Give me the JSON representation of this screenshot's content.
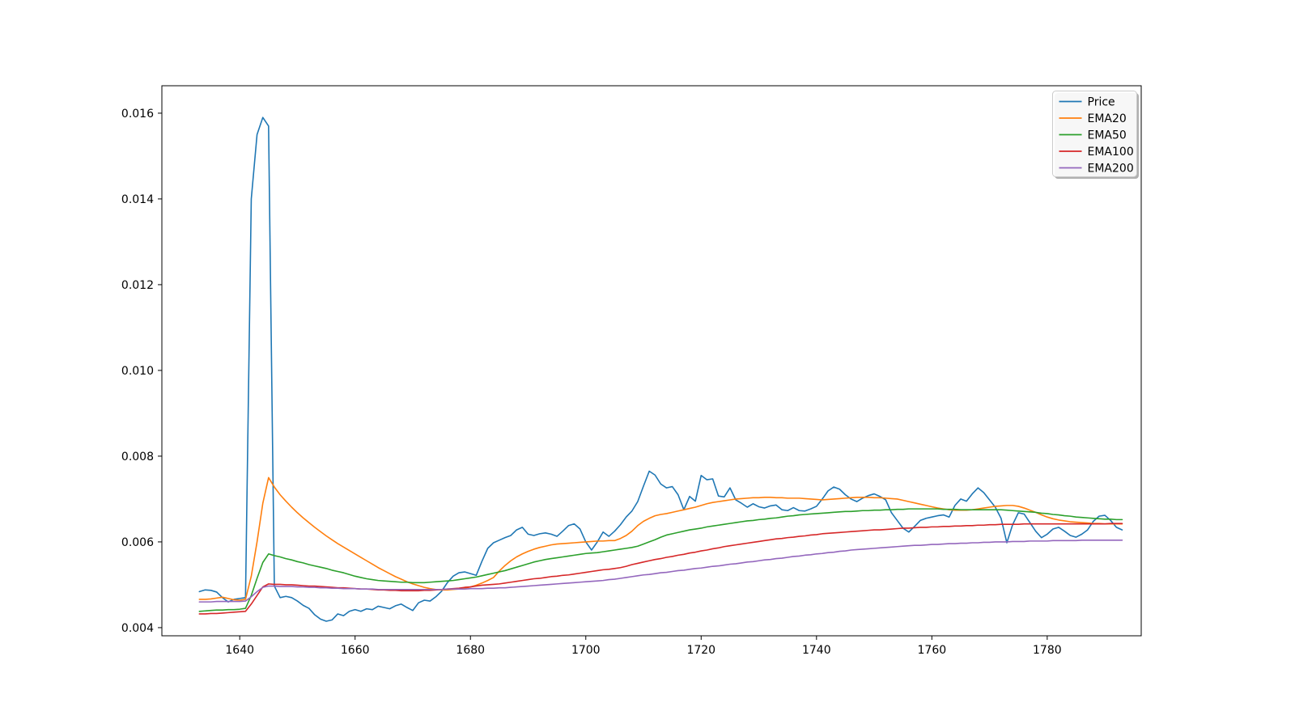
{
  "figure": {
    "background": "#ffffff",
    "axis_color": "#000000"
  },
  "chart_data": {
    "type": "line",
    "title": "",
    "xlabel": "",
    "ylabel": "",
    "grid": false,
    "x_start": 1633,
    "x_step": 1,
    "xlim": [
      1626.5,
      1796.3
    ],
    "ylim": [
      0.00381,
      0.01664
    ],
    "xticks": [
      1640,
      1660,
      1680,
      1700,
      1720,
      1740,
      1760,
      1780
    ],
    "xtick_labels": [
      "1640",
      "1660",
      "1680",
      "1700",
      "1720",
      "1740",
      "1760",
      "1780"
    ],
    "yticks": [
      0.004,
      0.006,
      0.008,
      0.01,
      0.012,
      0.014,
      0.016
    ],
    "ytick_labels": [
      "0.004",
      "0.006",
      "0.008",
      "0.010",
      "0.012",
      "0.014",
      "0.016"
    ],
    "legend": {
      "location": "upper right",
      "entries": [
        "Price",
        "EMA20",
        "EMA50",
        "EMA100",
        "EMA200"
      ]
    },
    "series": [
      {
        "name": "Price",
        "color": "#1f77b4",
        "values": [
          0.00484,
          0.00488,
          0.00487,
          0.00483,
          0.0047,
          0.0046,
          0.00466,
          0.00468,
          0.0047,
          0.014,
          0.0155,
          0.0159,
          0.0157,
          0.00497,
          0.0047,
          0.00473,
          0.0047,
          0.00462,
          0.00452,
          0.00445,
          0.0043,
          0.0042,
          0.00415,
          0.00418,
          0.00432,
          0.00428,
          0.00438,
          0.00442,
          0.00438,
          0.00444,
          0.00442,
          0.0045,
          0.00447,
          0.00444,
          0.00451,
          0.00455,
          0.00447,
          0.0044,
          0.00458,
          0.00464,
          0.00462,
          0.00472,
          0.00485,
          0.00505,
          0.0052,
          0.00528,
          0.0053,
          0.00526,
          0.00522,
          0.00555,
          0.00585,
          0.00598,
          0.00604,
          0.0061,
          0.00615,
          0.00628,
          0.00634,
          0.00618,
          0.00615,
          0.00619,
          0.00621,
          0.00618,
          0.00613,
          0.00625,
          0.00638,
          0.00642,
          0.0063,
          0.006,
          0.00581,
          0.006,
          0.00623,
          0.00613,
          0.00625,
          0.0064,
          0.00658,
          0.00672,
          0.00694,
          0.0073,
          0.00765,
          0.00756,
          0.00735,
          0.00726,
          0.00729,
          0.0071,
          0.00675,
          0.00706,
          0.00695,
          0.00755,
          0.00745,
          0.00747,
          0.00707,
          0.00705,
          0.00726,
          0.00698,
          0.0069,
          0.00681,
          0.00689,
          0.00682,
          0.00679,
          0.00684,
          0.00686,
          0.00675,
          0.00673,
          0.0068,
          0.00673,
          0.00672,
          0.00677,
          0.00683,
          0.007,
          0.00719,
          0.00728,
          0.00723,
          0.0071,
          0.007,
          0.00694,
          0.00702,
          0.00708,
          0.00712,
          0.00706,
          0.00698,
          0.00668,
          0.0065,
          0.00632,
          0.00623,
          0.00636,
          0.0065,
          0.00655,
          0.00658,
          0.00661,
          0.00663,
          0.00658,
          0.00685,
          0.007,
          0.00695,
          0.00712,
          0.00726,
          0.00715,
          0.00698,
          0.00681,
          0.00655,
          0.00598,
          0.0064,
          0.00668,
          0.00665,
          0.00645,
          0.00625,
          0.0061,
          0.00618,
          0.0063,
          0.00634,
          0.00625,
          0.00615,
          0.00611,
          0.00618,
          0.00628,
          0.00648,
          0.0066,
          0.00662,
          0.0065,
          0.00634,
          0.00628
        ]
      },
      {
        "name": "EMA20",
        "color": "#ff7f0e",
        "values": [
          0.00466,
          0.00466,
          0.00467,
          0.00469,
          0.00471,
          0.00468,
          0.00465,
          0.00464,
          0.00466,
          0.0052,
          0.006,
          0.0069,
          0.0075,
          0.00728,
          0.0071,
          0.00695,
          0.00681,
          0.00668,
          0.00656,
          0.00645,
          0.00634,
          0.00624,
          0.00614,
          0.00605,
          0.00596,
          0.00588,
          0.0058,
          0.00572,
          0.00564,
          0.00556,
          0.00548,
          0.0054,
          0.00533,
          0.00526,
          0.00519,
          0.00513,
          0.00507,
          0.00502,
          0.00498,
          0.00494,
          0.00491,
          0.00489,
          0.00488,
          0.00488,
          0.00489,
          0.0049,
          0.00492,
          0.00495,
          0.00499,
          0.00504,
          0.0051,
          0.00517,
          0.00532,
          0.00545,
          0.00556,
          0.00565,
          0.00572,
          0.00578,
          0.00583,
          0.00587,
          0.0059,
          0.00593,
          0.00595,
          0.00596,
          0.00597,
          0.00598,
          0.00599,
          0.006,
          0.00601,
          0.00602,
          0.00602,
          0.00603,
          0.00603,
          0.00608,
          0.00615,
          0.00625,
          0.00638,
          0.00648,
          0.00655,
          0.00661,
          0.00664,
          0.00666,
          0.00669,
          0.00672,
          0.00675,
          0.00678,
          0.00681,
          0.00685,
          0.00689,
          0.00692,
          0.00694,
          0.00696,
          0.00698,
          0.007,
          0.00701,
          0.00702,
          0.00703,
          0.00703,
          0.00704,
          0.00704,
          0.00703,
          0.00703,
          0.00702,
          0.00702,
          0.00702,
          0.00701,
          0.007,
          0.00699,
          0.00698,
          0.00699,
          0.007,
          0.00701,
          0.00702,
          0.00703,
          0.00704,
          0.00704,
          0.00704,
          0.00703,
          0.00703,
          0.00702,
          0.00701,
          0.007,
          0.00697,
          0.00694,
          0.00691,
          0.00688,
          0.00685,
          0.00682,
          0.00679,
          0.00677,
          0.00675,
          0.00674,
          0.00674,
          0.00674,
          0.00675,
          0.00677,
          0.00679,
          0.00681,
          0.00683,
          0.00684,
          0.00685,
          0.00685,
          0.00683,
          0.00679,
          0.00674,
          0.00669,
          0.00663,
          0.00658,
          0.00654,
          0.00651,
          0.00649,
          0.00647,
          0.00646,
          0.00645,
          0.00644,
          0.00643,
          0.00643,
          0.00642,
          0.00642,
          0.00642,
          0.00642
        ]
      },
      {
        "name": "EMA50",
        "color": "#2ca02c",
        "values": [
          0.00438,
          0.00439,
          0.0044,
          0.00441,
          0.00441,
          0.00442,
          0.00442,
          0.00443,
          0.00445,
          0.00475,
          0.00515,
          0.00552,
          0.00572,
          0.00568,
          0.00565,
          0.00561,
          0.00558,
          0.00554,
          0.00551,
          0.00547,
          0.00544,
          0.00541,
          0.00538,
          0.00534,
          0.00531,
          0.00528,
          0.00524,
          0.0052,
          0.00517,
          0.00514,
          0.00512,
          0.0051,
          0.00509,
          0.00508,
          0.00507,
          0.00506,
          0.00506,
          0.00505,
          0.00505,
          0.00505,
          0.00506,
          0.00507,
          0.00508,
          0.00509,
          0.0051,
          0.00512,
          0.00514,
          0.00516,
          0.00518,
          0.00521,
          0.00524,
          0.00527,
          0.0053,
          0.00533,
          0.00537,
          0.00541,
          0.00545,
          0.00549,
          0.00553,
          0.00556,
          0.00559,
          0.00561,
          0.00563,
          0.00565,
          0.00567,
          0.00569,
          0.00571,
          0.00573,
          0.00574,
          0.00575,
          0.00577,
          0.00579,
          0.00581,
          0.00583,
          0.00585,
          0.00587,
          0.0059,
          0.00595,
          0.006,
          0.00605,
          0.00611,
          0.00616,
          0.00619,
          0.00622,
          0.00625,
          0.00628,
          0.0063,
          0.00632,
          0.00635,
          0.00637,
          0.00639,
          0.00641,
          0.00643,
          0.00645,
          0.00647,
          0.00649,
          0.0065,
          0.00652,
          0.00653,
          0.00655,
          0.00656,
          0.00658,
          0.0066,
          0.00661,
          0.00663,
          0.00664,
          0.00665,
          0.00666,
          0.00667,
          0.00668,
          0.00669,
          0.0067,
          0.00671,
          0.00671,
          0.00672,
          0.00673,
          0.00673,
          0.00674,
          0.00674,
          0.00675,
          0.00675,
          0.00676,
          0.00676,
          0.00677,
          0.00677,
          0.00677,
          0.00677,
          0.00677,
          0.00677,
          0.00676,
          0.00676,
          0.00676,
          0.00675,
          0.00675,
          0.00675,
          0.00675,
          0.00675,
          0.00675,
          0.00675,
          0.00675,
          0.00674,
          0.00673,
          0.00672,
          0.00671,
          0.0067,
          0.00669,
          0.00667,
          0.00666,
          0.00664,
          0.00663,
          0.00661,
          0.0066,
          0.00658,
          0.00657,
          0.00656,
          0.00655,
          0.00654,
          0.00653,
          0.00653,
          0.00652,
          0.00652
        ]
      },
      {
        "name": "EMA100",
        "color": "#d62728",
        "values": [
          0.00432,
          0.00432,
          0.00433,
          0.00433,
          0.00434,
          0.00435,
          0.00436,
          0.00437,
          0.00438,
          0.00455,
          0.00475,
          0.00495,
          0.00502,
          0.00501,
          0.00501,
          0.005,
          0.005,
          0.00499,
          0.00498,
          0.00497,
          0.00497,
          0.00496,
          0.00495,
          0.00494,
          0.00493,
          0.00493,
          0.00492,
          0.00491,
          0.0049,
          0.0049,
          0.00489,
          0.00488,
          0.00488,
          0.00487,
          0.00487,
          0.00486,
          0.00486,
          0.00486,
          0.00486,
          0.00487,
          0.00487,
          0.00488,
          0.00489,
          0.0049,
          0.00491,
          0.00492,
          0.00494,
          0.00495,
          0.00497,
          0.00499,
          0.005,
          0.00501,
          0.00502,
          0.00504,
          0.00506,
          0.00508,
          0.0051,
          0.00512,
          0.00514,
          0.00515,
          0.00517,
          0.00519,
          0.0052,
          0.00522,
          0.00523,
          0.00525,
          0.00527,
          0.00529,
          0.00531,
          0.00533,
          0.00535,
          0.00536,
          0.00538,
          0.0054,
          0.00543,
          0.00547,
          0.0055,
          0.00553,
          0.00556,
          0.00559,
          0.00561,
          0.00564,
          0.00566,
          0.00569,
          0.00571,
          0.00574,
          0.00576,
          0.00579,
          0.00581,
          0.00584,
          0.00586,
          0.00589,
          0.00591,
          0.00593,
          0.00595,
          0.00597,
          0.00599,
          0.00601,
          0.00603,
          0.00605,
          0.00607,
          0.00608,
          0.0061,
          0.00611,
          0.00613,
          0.00614,
          0.00616,
          0.00617,
          0.00619,
          0.0062,
          0.00621,
          0.00622,
          0.00623,
          0.00624,
          0.00625,
          0.00626,
          0.00627,
          0.00628,
          0.00628,
          0.00629,
          0.0063,
          0.00631,
          0.00632,
          0.00632,
          0.00633,
          0.00634,
          0.00634,
          0.00635,
          0.00635,
          0.00636,
          0.00636,
          0.00637,
          0.00637,
          0.00638,
          0.00638,
          0.00639,
          0.00639,
          0.0064,
          0.0064,
          0.00641,
          0.00641,
          0.00641,
          0.00641,
          0.00642,
          0.00642,
          0.00642,
          0.00642,
          0.00642,
          0.00642,
          0.00642,
          0.00642,
          0.00642,
          0.00642,
          0.00642,
          0.00642,
          0.00642,
          0.00642,
          0.00642,
          0.00643,
          0.00643,
          0.00643
        ]
      },
      {
        "name": "EMA200",
        "color": "#9467bd",
        "values": [
          0.0046,
          0.0046,
          0.0046,
          0.00461,
          0.00461,
          0.00461,
          0.00461,
          0.00461,
          0.00462,
          0.00472,
          0.00484,
          0.00494,
          0.00497,
          0.00497,
          0.00496,
          0.00496,
          0.00496,
          0.00495,
          0.00495,
          0.00494,
          0.00494,
          0.00493,
          0.00493,
          0.00492,
          0.00492,
          0.00491,
          0.00491,
          0.00491,
          0.0049,
          0.0049,
          0.0049,
          0.00489,
          0.00489,
          0.00489,
          0.00489,
          0.00489,
          0.00489,
          0.00489,
          0.00489,
          0.00489,
          0.00489,
          0.00489,
          0.00489,
          0.0049,
          0.0049,
          0.0049,
          0.0049,
          0.00491,
          0.00491,
          0.00491,
          0.00492,
          0.00492,
          0.00493,
          0.00493,
          0.00494,
          0.00495,
          0.00496,
          0.00497,
          0.00498,
          0.00499,
          0.005,
          0.00501,
          0.00502,
          0.00503,
          0.00504,
          0.00505,
          0.00506,
          0.00507,
          0.00508,
          0.00509,
          0.0051,
          0.00512,
          0.00513,
          0.00515,
          0.00517,
          0.00519,
          0.00521,
          0.00523,
          0.00524,
          0.00526,
          0.00528,
          0.00529,
          0.00531,
          0.00533,
          0.00534,
          0.00536,
          0.00538,
          0.00539,
          0.00541,
          0.00543,
          0.00544,
          0.00546,
          0.00548,
          0.00549,
          0.00551,
          0.00553,
          0.00554,
          0.00556,
          0.00558,
          0.00559,
          0.00561,
          0.00562,
          0.00564,
          0.00566,
          0.00567,
          0.00569,
          0.0057,
          0.00572,
          0.00573,
          0.00575,
          0.00576,
          0.00578,
          0.00579,
          0.00581,
          0.00582,
          0.00583,
          0.00584,
          0.00585,
          0.00586,
          0.00587,
          0.00588,
          0.00589,
          0.0059,
          0.00591,
          0.00592,
          0.00592,
          0.00593,
          0.00594,
          0.00594,
          0.00595,
          0.00596,
          0.00596,
          0.00597,
          0.00597,
          0.00598,
          0.00598,
          0.00599,
          0.00599,
          0.006,
          0.006,
          0.006,
          0.00601,
          0.00601,
          0.00601,
          0.00602,
          0.00602,
          0.00602,
          0.00602,
          0.00603,
          0.00603,
          0.00603,
          0.00603,
          0.00603,
          0.00604,
          0.00604,
          0.00604,
          0.00604,
          0.00604,
          0.00604,
          0.00604,
          0.00604
        ]
      }
    ]
  }
}
